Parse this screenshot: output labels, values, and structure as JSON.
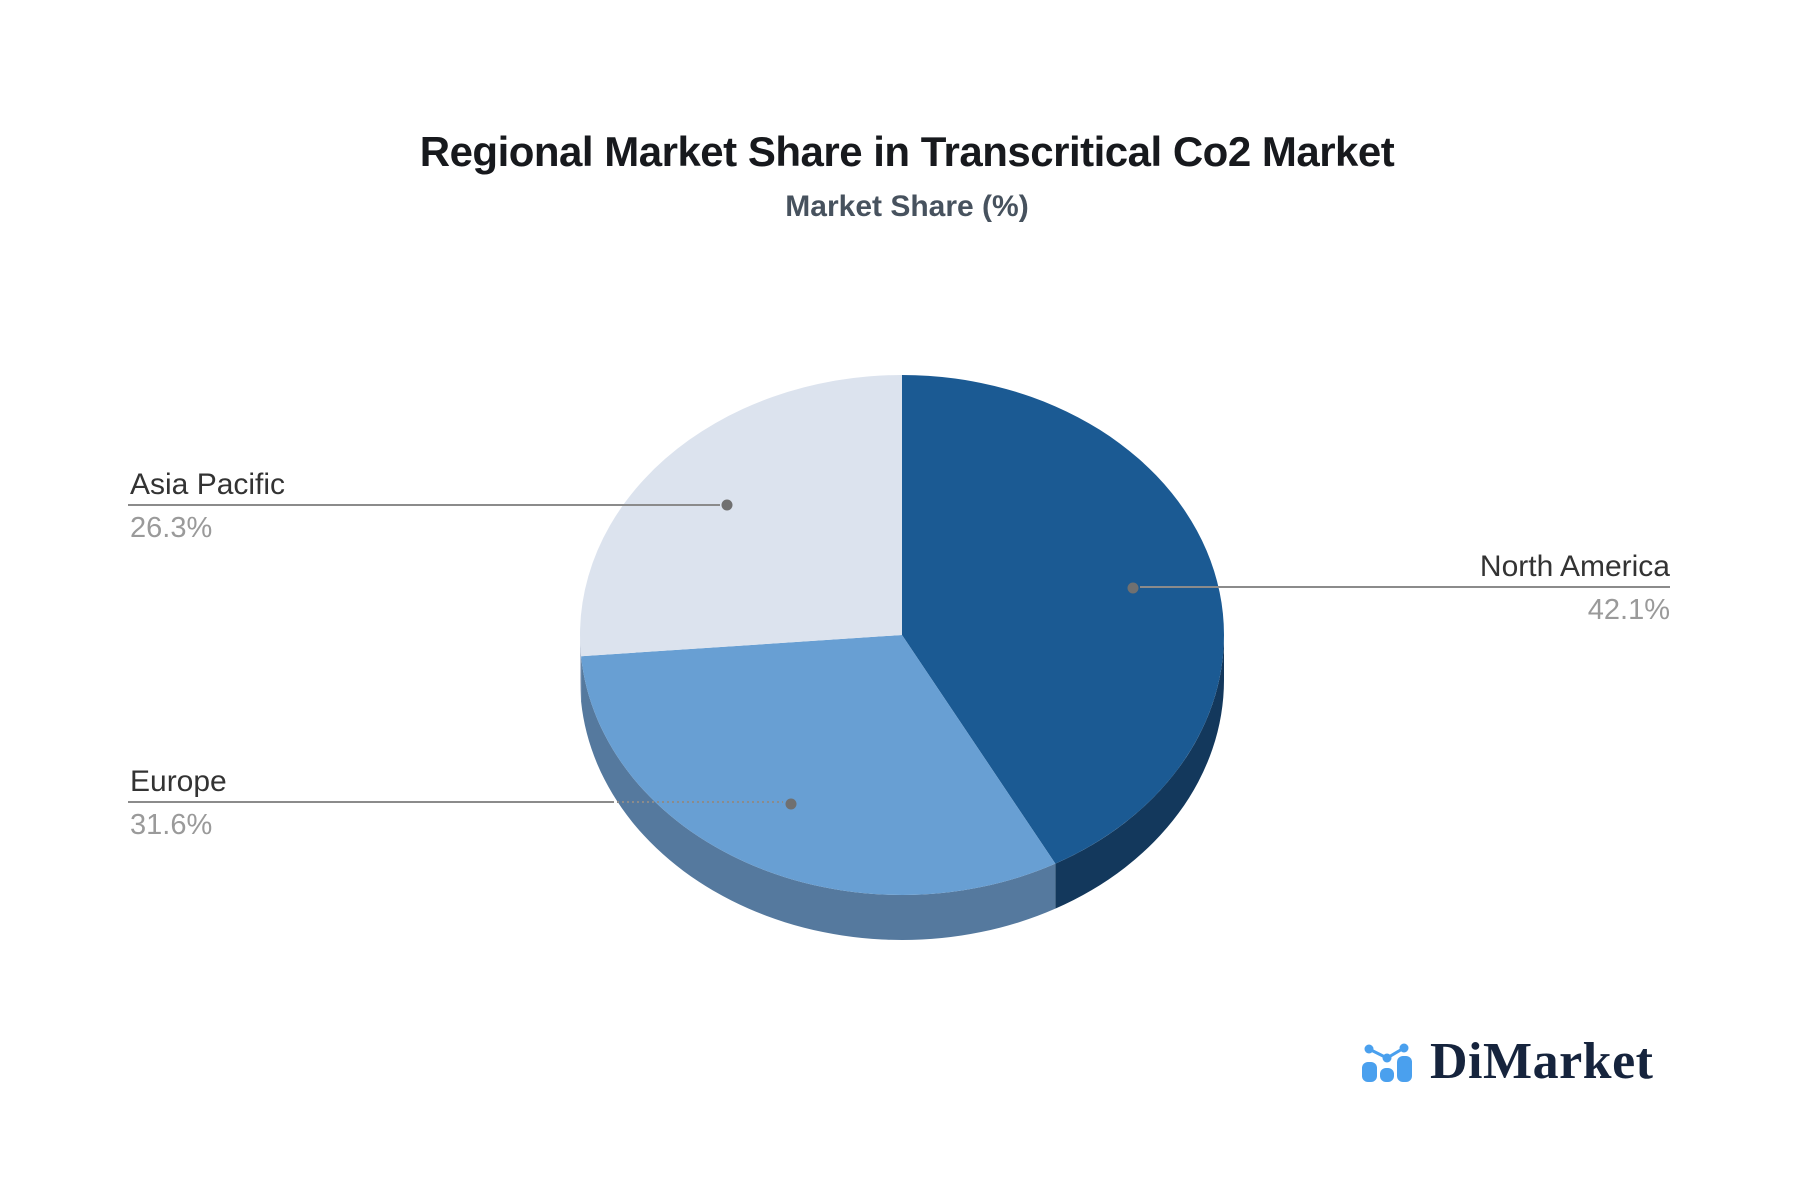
{
  "title": "Regional Market Share in Transcritical Co2 Market",
  "subtitle": "Market Share (%)",
  "brand": {
    "name": "DiMarket",
    "icon": "bar-line-chart-icon",
    "text_color": "#16243d",
    "icon_color": "#4aa0ee"
  },
  "chart_data": {
    "type": "pie",
    "title": "Regional Market Share in Transcritical Co2 Market",
    "subtitle": "Market Share (%)",
    "unit": "%",
    "effect": "3d",
    "start_angle_deg": 0,
    "direction": "clockwise",
    "legend": "none",
    "connector_color": "#8b8b8b",
    "connector_dot_color": "#707070",
    "label_color": "#333333",
    "value_color": "#9a9a9a",
    "slices": [
      {
        "label": "North America",
        "value": 42.1,
        "display": "42.1%",
        "color": "#1b5a93",
        "side_color": "#13385c",
        "label_side": "right"
      },
      {
        "label": "Europe",
        "value": 31.6,
        "display": "31.6%",
        "color": "#689fd3",
        "side_color": "#55799e",
        "label_side": "left"
      },
      {
        "label": "Asia Pacific",
        "value": 26.3,
        "display": "26.3%",
        "color": "#dce3ee",
        "side_color": "#b9c3d4",
        "label_side": "left"
      }
    ]
  }
}
